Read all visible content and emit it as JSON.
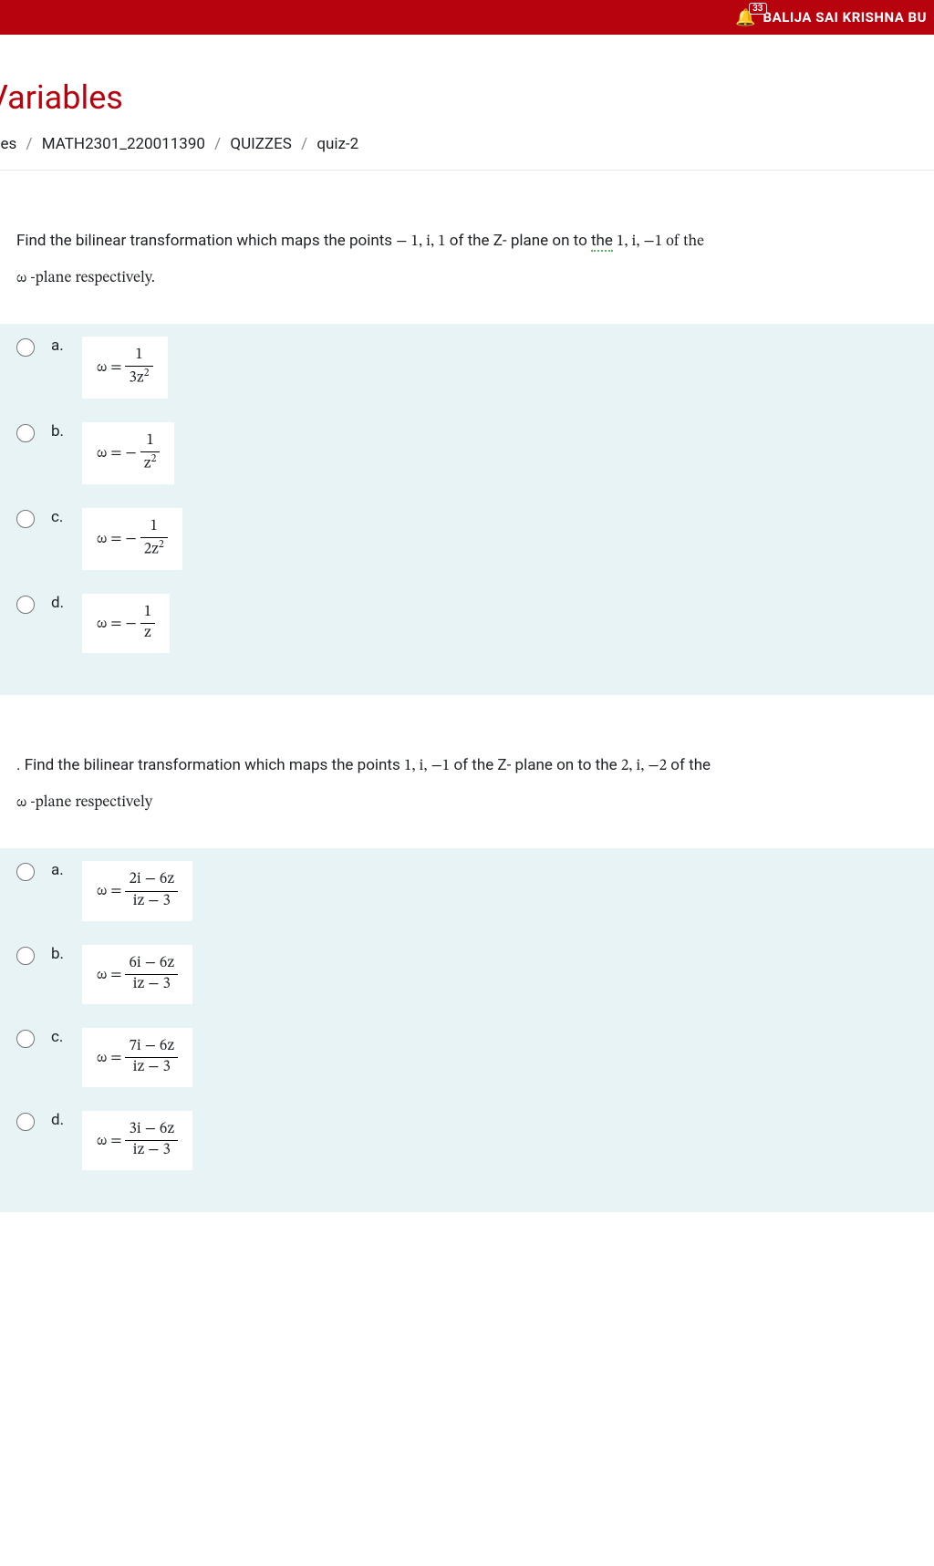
{
  "header": {
    "notification_count": "33",
    "user_name": "BALIJA SAI KRISHNA BU"
  },
  "page_title": "Variables",
  "breadcrumb": {
    "items": [
      "rses",
      "MATH2301_220011390",
      "QUIZZES",
      "quiz-2"
    ]
  },
  "questions": [
    {
      "text_parts": {
        "p1a": "Find the bilinear transformation which maps the points ",
        "p1b": "− 1, i, 1",
        "p1c": " of the Z- plane on to ",
        "p1d": "the",
        "p1e": "  1, i, −1 of the",
        "p2a": "ω -plane respectively."
      },
      "options": [
        {
          "label": "a.",
          "omega": "ω =",
          "neg": "",
          "num": "1",
          "den_html": "3z<span class='sup'>2</span>"
        },
        {
          "label": "b.",
          "omega": "ω =",
          "neg": "− ",
          "num": "1",
          "den_html": "z<span class='sup'>2</span>"
        },
        {
          "label": "c.",
          "omega": "ω =",
          "neg": "− ",
          "num": "1",
          "den_html": "2z<span class='sup'>2</span>"
        },
        {
          "label": "d.",
          "omega": "ω =",
          "neg": "− ",
          "num": "1",
          "den_html": "z"
        }
      ]
    },
    {
      "text_parts": {
        "p1a": ". Find the bilinear transformation which maps the points ",
        "p1b": "1, i, −1",
        "p1c": " of the Z- plane on to the ",
        "p1d": "2, i, −2",
        "p1e": " of the",
        "p2a": "ω -plane respectively"
      },
      "options": [
        {
          "label": "a.",
          "omega": "ω =",
          "neg": "",
          "num_html": "2i − 6z",
          "den_html": "iz − 3"
        },
        {
          "label": "b.",
          "omega": "ω =",
          "neg": "",
          "num_html": "6i − 6z",
          "den_html": "iz − 3"
        },
        {
          "label": "c.",
          "omega": "ω =",
          "neg": "",
          "num_html": "7i − 6z",
          "den_html": "iz − 3"
        },
        {
          "label": "d.",
          "omega": "ω =",
          "neg": "",
          "num_html": "3i − 6z",
          "den_html": "iz − 3"
        }
      ]
    }
  ],
  "colors": {
    "brand": "#b6030e",
    "question_bg": "#e7f3f5"
  }
}
